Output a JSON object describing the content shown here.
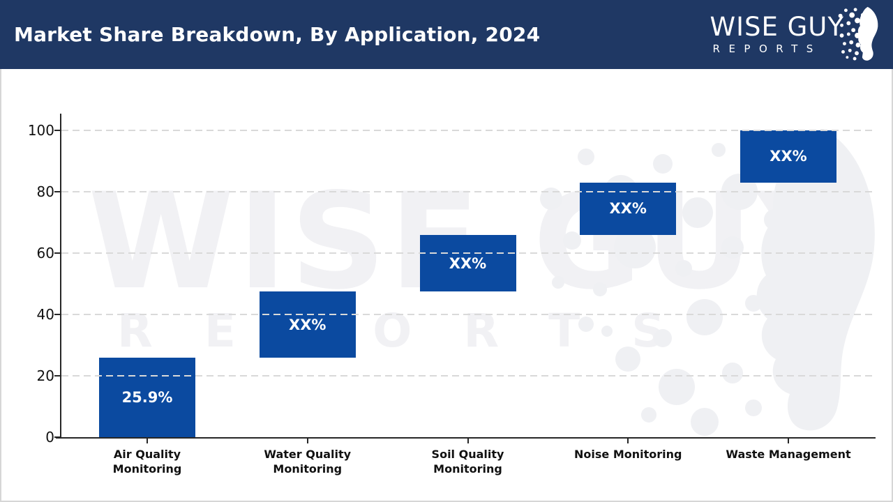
{
  "header": {
    "title": "Market Share Breakdown, By Application, 2024",
    "logo": {
      "line1": "WISE GUY",
      "line2": "REPORTS"
    }
  },
  "watermark": {
    "line1": "WISE GUY",
    "line2": "REPORTS"
  },
  "chart_data": {
    "type": "bar",
    "subtype": "floating-waterfall",
    "title": "Market Share Breakdown, By Application, 2024",
    "xlabel": "",
    "ylabel": "",
    "grid": true,
    "legend": "none",
    "yticks": [
      0,
      20,
      40,
      60,
      80,
      100
    ],
    "ylim": [
      0,
      105.5
    ],
    "bar_color": "#0b4aa0",
    "bar_label_color": "#ffffff",
    "bars": [
      {
        "category": "Air Quality Monitoring",
        "category_lines": [
          "Air Quality",
          "Monitoring"
        ],
        "start": 0,
        "end": 25.9,
        "label": "25.9%"
      },
      {
        "category": "Water Quality Monitoring",
        "category_lines": [
          "Water Quality",
          "Monitoring"
        ],
        "start": 25.9,
        "end": 47.4,
        "label": "XX%"
      },
      {
        "category": "Soil Quality Monitoring",
        "category_lines": [
          "Soil Quality",
          "Monitoring"
        ],
        "start": 47.4,
        "end": 66.0,
        "label": "XX%"
      },
      {
        "category": "Noise Monitoring",
        "category_lines": [
          "Noise Monitoring"
        ],
        "start": 66.0,
        "end": 83.0,
        "label": "XX%"
      },
      {
        "category": "Waste Management",
        "category_lines": [
          "Waste Management"
        ],
        "start": 83.0,
        "end": 100.0,
        "label": "XX%"
      }
    ]
  }
}
